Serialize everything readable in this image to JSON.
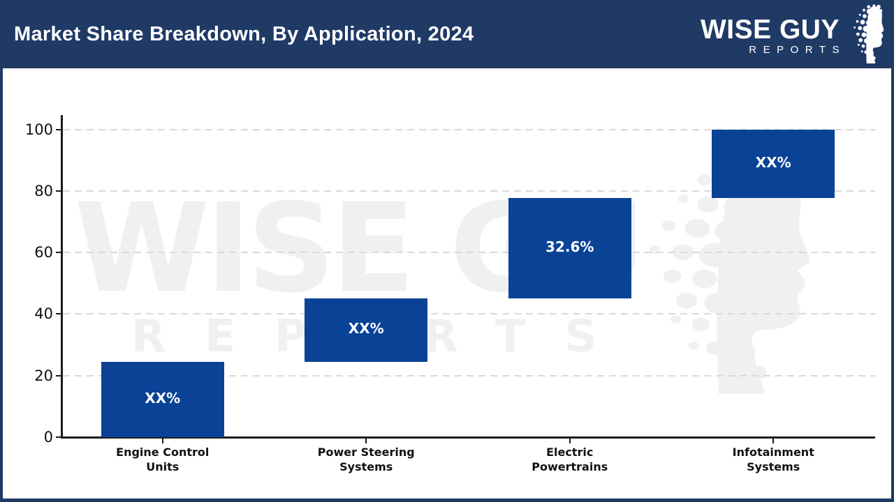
{
  "header": {
    "title": "Market Share Breakdown, By Application, 2024",
    "logo_line1": "WISE GUY",
    "logo_line2": "REPORTS"
  },
  "watermark": {
    "line1": "WISE GU",
    "line2": "REPORTS"
  },
  "chart_data": {
    "type": "bar",
    "subtype": "waterfall",
    "title": "Market Share Breakdown, By Application, 2024",
    "categories": [
      "Engine Control Units",
      "Power Steering Systems",
      "Electric Powertrains",
      "Infotainment Systems"
    ],
    "category_lines": [
      [
        "Engine Control",
        "Units"
      ],
      [
        "Power Steering",
        "Systems"
      ],
      [
        "Electric",
        "Powertrains"
      ],
      [
        "Infotainment",
        "Systems"
      ]
    ],
    "segments": [
      {
        "category": "Engine Control Units",
        "start": 0,
        "end": 24.5,
        "label": "XX%"
      },
      {
        "category": "Power Steering Systems",
        "start": 24.5,
        "end": 45.1,
        "label": "XX%"
      },
      {
        "category": "Electric Powertrains",
        "start": 45.1,
        "end": 77.7,
        "label": "32.6%",
        "value": 32.6
      },
      {
        "category": "Infotainment Systems",
        "start": 77.7,
        "end": 100,
        "label": "XX%"
      }
    ],
    "ylim": [
      0,
      100
    ],
    "yticks": [
      0,
      20,
      40,
      60,
      80,
      100
    ],
    "grid": {
      "axis": "y",
      "style": "dashed"
    },
    "legend": null
  },
  "colors": {
    "header_bg": "#203a66",
    "frame": "#203a66",
    "bar": "#0a4296",
    "bar_label": "#ffffff",
    "gridline": "#d9d9d9",
    "axis": "#1c1c1c",
    "tick_text": "#111111",
    "watermark": "#f0f0f3"
  }
}
